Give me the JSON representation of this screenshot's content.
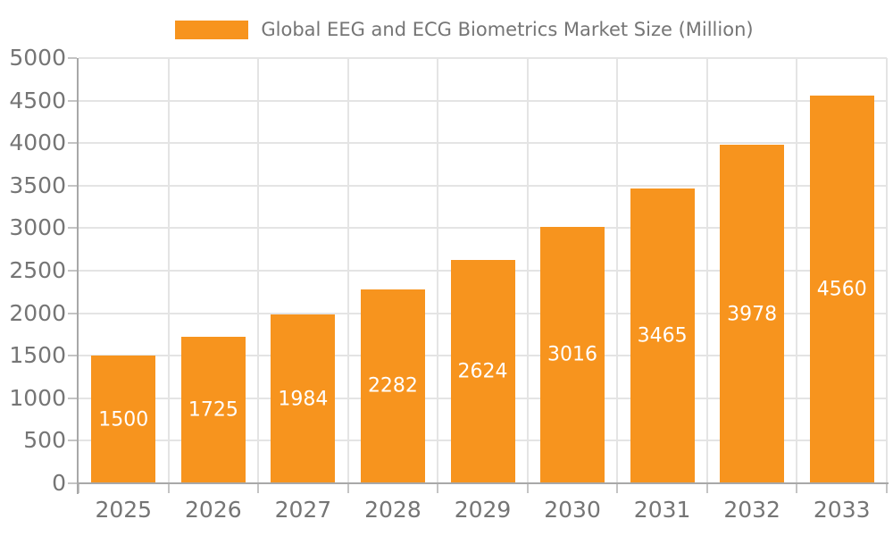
{
  "chart_data": {
    "type": "bar",
    "title": "Global EEG and ECG Biometrics Market Size (Million)",
    "legend_position": "top",
    "categories": [
      "2025",
      "2026",
      "2027",
      "2028",
      "2029",
      "2030",
      "2031",
      "2032",
      "2033"
    ],
    "series": [
      {
        "name": "Global EEG and ECG Biometrics Market Size (Million)",
        "values": [
          1500,
          1725,
          1984,
          2282,
          2624,
          3016,
          3465,
          3978,
          4560
        ]
      }
    ],
    "xlabel": "",
    "ylabel": "",
    "ylim": [
      0,
      5000
    ],
    "yticks": [
      0,
      500,
      1000,
      1500,
      2000,
      2500,
      3000,
      3500,
      4000,
      4500,
      5000
    ],
    "grid": true,
    "data_labels_visible": true,
    "colors": {
      "bar": "#F7941E",
      "bar_label": "#FFFFFF",
      "text": "#757575",
      "gridline": "#E4E4E4",
      "axis_line": "#A8A8A8",
      "tick": "#C4C4C4",
      "background": "#FFFFFF"
    }
  }
}
